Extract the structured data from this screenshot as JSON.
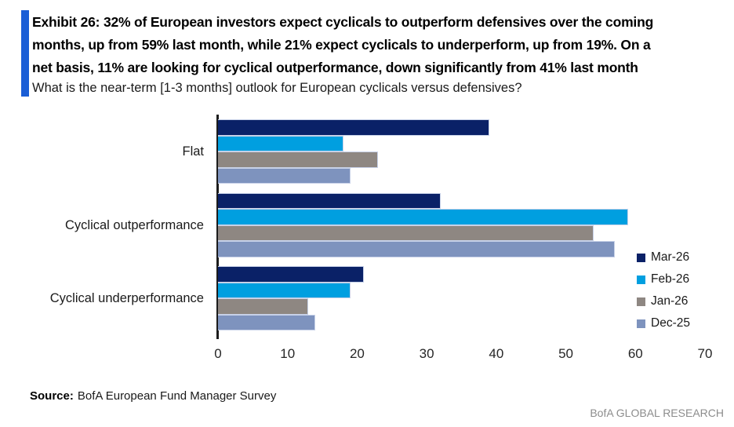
{
  "header": {
    "accent_color": "#1a5ed6",
    "title_lines": [
      "Exhibit 26: 32% of European investors expect cyclicals to outperform defensives over the coming",
      "months, up from 59% last month, while 21% expect cyclicals to underperform, up from 19%. On a",
      "net basis, 11% are looking for cyclical outperformance, down significantly from 41% last month"
    ],
    "subtitle": "What is the near-term [1-3 months] outlook for European cyclicals versus defensives?"
  },
  "chart_data": {
    "type": "bar",
    "orientation": "horizontal",
    "categories": [
      "Flat",
      "Cyclical outperformance",
      "Cyclical underperformance"
    ],
    "series": [
      {
        "name": "Mar-26",
        "color": "#0a2167",
        "values": [
          39,
          32,
          21
        ]
      },
      {
        "name": "Feb-26",
        "color": "#009fe0",
        "values": [
          18,
          59,
          19
        ]
      },
      {
        "name": "Jan-26",
        "color": "#8e8782",
        "values": [
          23,
          54,
          13
        ]
      },
      {
        "name": "Dec-25",
        "color": "#7e93be",
        "values": [
          19,
          57,
          14
        ]
      }
    ],
    "xlim": [
      0,
      70
    ],
    "xticks": [
      0,
      10,
      20,
      30,
      40,
      50,
      60,
      70
    ],
    "legend_position": "right",
    "grid": false
  },
  "footer": {
    "source_label": "Source:",
    "source_text": "BofA European Fund Manager Survey",
    "brand": "BofA GLOBAL RESEARCH"
  }
}
